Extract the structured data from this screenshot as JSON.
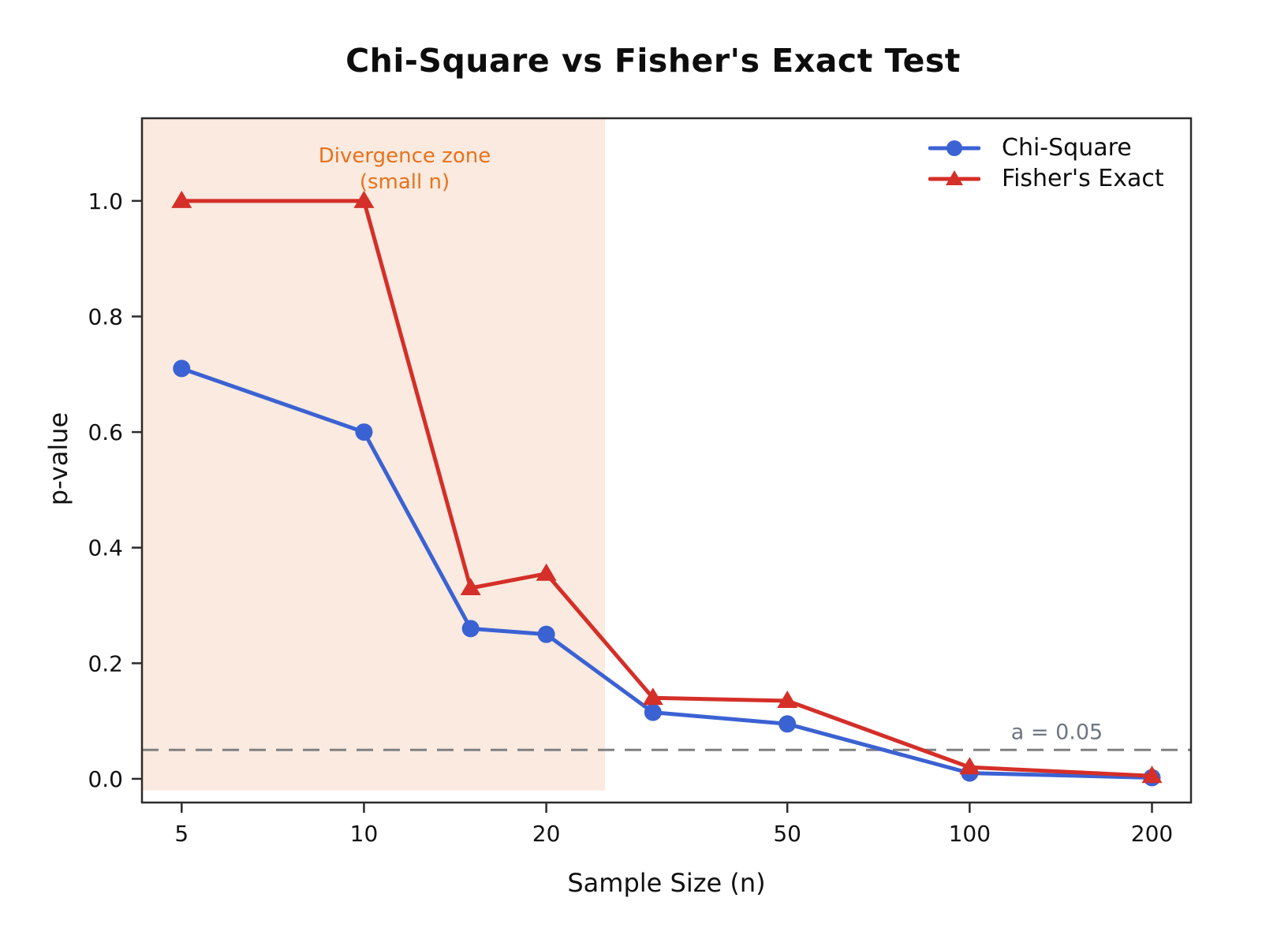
{
  "title": "Chi-Square vs Fisher's Exact Test",
  "chart_data": {
    "type": "line",
    "x_scale": "log",
    "x": [
      5,
      10,
      15,
      20,
      30,
      50,
      100,
      200
    ],
    "series": [
      {
        "name": "Chi-Square",
        "color": "#3b62d3",
        "marker": "circle",
        "values": [
          0.71,
          0.6,
          0.26,
          0.25,
          0.115,
          0.095,
          0.01,
          0.002
        ]
      },
      {
        "name": "Fisher's Exact",
        "color": "#d42f28",
        "marker": "triangle",
        "values": [
          1.0,
          1.0,
          0.33,
          0.355,
          0.14,
          0.135,
          0.02,
          0.005
        ]
      }
    ],
    "xlabel": "Sample Size (n)",
    "ylabel": "p-value",
    "x_ticks": [
      5,
      10,
      20,
      50,
      100,
      200
    ],
    "x_tick_labels": [
      "5",
      "10",
      "20",
      "50",
      "100",
      "200"
    ],
    "y_ticks": [
      0.0,
      0.2,
      0.4,
      0.6,
      0.8,
      1.0
    ],
    "y_tick_labels": [
      "0.0",
      "0.2",
      "0.4",
      "0.6",
      "0.8",
      "1.0"
    ],
    "xlim": [
      4.3,
      232
    ],
    "ylim": [
      -0.041,
      1.143
    ],
    "grid": false,
    "frame_color": "#2b2b2b",
    "reference_line": {
      "y": 0.05,
      "label": "a = 0.05",
      "color": "#808080",
      "label_color": "#6d7684"
    },
    "shaded_region": {
      "x_end": 25,
      "y_bottom": -0.02,
      "color": "#faeae0",
      "label_line1": "Divergence zone",
      "label_line2": "(small n)",
      "label_color": "#e8721c"
    },
    "legend": {
      "position": "upper right",
      "entries": [
        "Chi-Square",
        "Fisher's Exact"
      ]
    }
  }
}
